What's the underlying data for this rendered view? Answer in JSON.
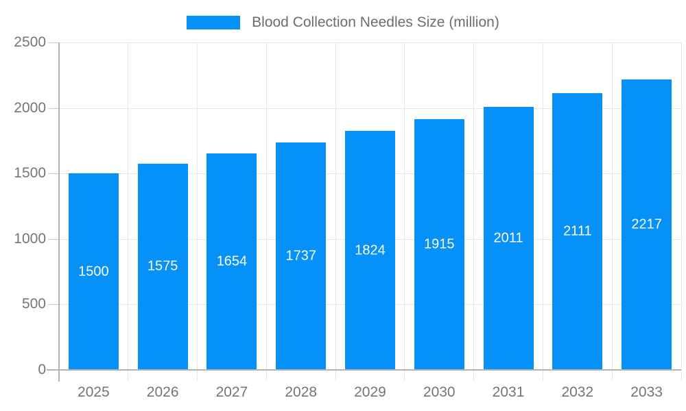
{
  "legend": {
    "label": "Blood Collection Needles Size (million)"
  },
  "chart_data": {
    "type": "bar",
    "title": "Blood Collection Needles Size (million)",
    "categories": [
      "2025",
      "2026",
      "2027",
      "2028",
      "2029",
      "2030",
      "2031",
      "2032",
      "2033"
    ],
    "values": [
      1500,
      1575,
      1654,
      1737,
      1824,
      1915,
      2011,
      2111,
      2217
    ],
    "xlabel": "",
    "ylabel": "",
    "ylim": [
      0,
      2500
    ],
    "yticks": [
      0,
      500,
      1000,
      1500,
      2000,
      2500
    ],
    "grid": true,
    "legend_position": "top-center",
    "bar_labels_inside": true,
    "colors": {
      "bar": "#0591f8",
      "bar_label": "#ffffff",
      "axis_line": "#b3b3b3",
      "tick": "#cccccc",
      "gridline": "#e6e6e6",
      "axis_label": "#757575",
      "legend_text": "#6d6d6d",
      "background": "#ffffff"
    }
  }
}
